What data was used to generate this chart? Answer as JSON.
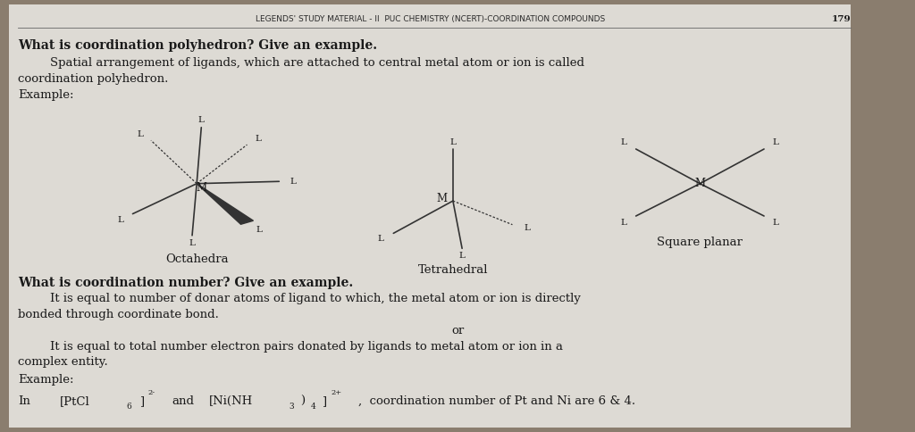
{
  "background_color": "#8a7d6e",
  "page_bg": "#dddad4",
  "header_text": "LEGENDS' STUDY MATERIAL - II  PUC CHEMISTRY (NCERT)-COORDINATION COMPOUNDS",
  "page_number": "179",
  "title_bold": "What is coordination polyhedron? Give an example.",
  "body_line1": "Spatial arrangement of ligands, which are attached to central metal atom or ion is called",
  "body_line2": "coordination polyhedron.",
  "example_label": "Example:",
  "diagram_labels": [
    "Octahedra",
    "Tetrahedral",
    "Square planar"
  ],
  "section2_bold": "What is coordination number? Give an example.",
  "body2_line1": "It is equal to number of donar atoms of ligand to which, the metal atom or ion is directly",
  "body2_line2": "bonded through coordinate bond.",
  "or_text": "or",
  "body3_line1": "It is equal to total number electron pairs donated by ligands to metal atom or ion in a",
  "body3_line2": "complex entity.",
  "example2_label": "Example:",
  "formula_line": "In  [PtCl₆]²⁻  and  [Ni(NH₃)₄]²⁺,  coordination number of Pt and Ni are 6 & 4.",
  "text_color": "#1a1a1a",
  "line_color": "#333333",
  "header_color": "#2a2a2a",
  "title_fs": 10,
  "body_fs": 9.5,
  "header_fs": 6.5,
  "label_fs": 8.5,
  "diagram_label_fs": 9.5,
  "mol_label_fs": 7.5
}
